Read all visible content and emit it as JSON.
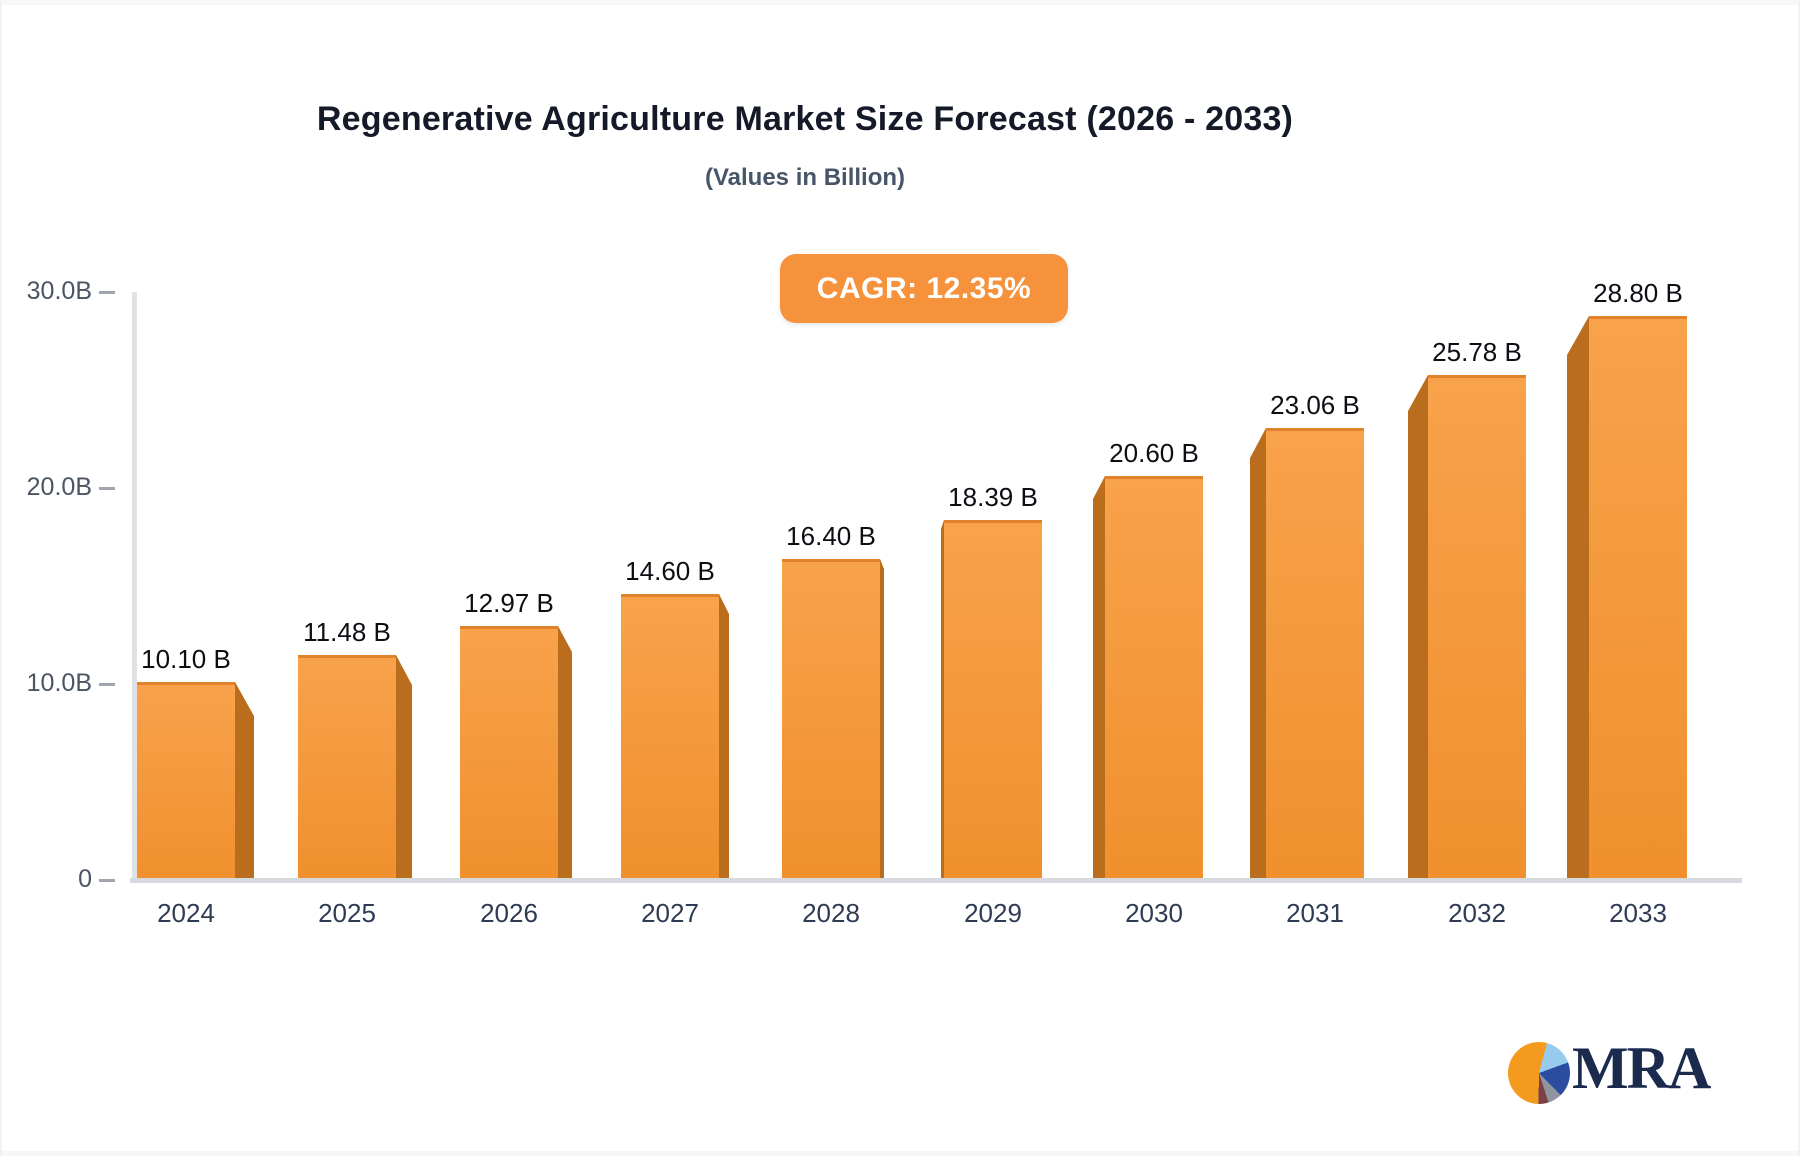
{
  "header": {
    "title": "Regenerative Agriculture Market Size Forecast (2026 - 2033)",
    "subtitle": "(Values in Billion)"
  },
  "badge": {
    "label": "CAGR: 12.35%",
    "color": "#F6923C"
  },
  "logo": {
    "text": "MRA",
    "colors": {
      "navy": "#1B2B4D",
      "pie_orange": "#F49B1F",
      "pie_light_blue": "#97CBEE",
      "pie_dark_blue": "#2A4DA0",
      "pie_gray": "#8F95A1",
      "pie_maroon": "#7C4148"
    }
  },
  "chart_data": {
    "type": "bar",
    "title": "Regenerative Agriculture Market Size Forecast (2026 - 2033)",
    "subtitle": "(Values in Billion)",
    "categories": [
      "2024",
      "2025",
      "2026",
      "2027",
      "2028",
      "2029",
      "2030",
      "2031",
      "2032",
      "2033"
    ],
    "values": [
      10.1,
      11.48,
      12.97,
      14.6,
      16.4,
      18.39,
      20.6,
      23.06,
      25.78,
      28.8
    ],
    "value_labels": [
      "10.10 B",
      "11.48 B",
      "12.97 B",
      "14.60 B",
      "16.40 B",
      "18.39 B",
      "20.60 B",
      "23.06 B",
      "25.78 B",
      "28.80 B"
    ],
    "xlabel": "",
    "ylabel": "",
    "ylim": [
      0,
      30
    ],
    "yticks": [
      {
        "value": 0,
        "label": "0"
      },
      {
        "value": 10,
        "label": "10.0B"
      },
      {
        "value": 20,
        "label": "20.0B"
      },
      {
        "value": 30,
        "label": "30.0B"
      }
    ],
    "grid": false,
    "legend": false,
    "annotations": [
      "CAGR: 12.35%"
    ],
    "bar_color_top": "#F8A24B",
    "bar_color_bottom": "#F0902E",
    "bar_side_color": "#BA6D1D",
    "style": "3d-perspective-bars"
  }
}
